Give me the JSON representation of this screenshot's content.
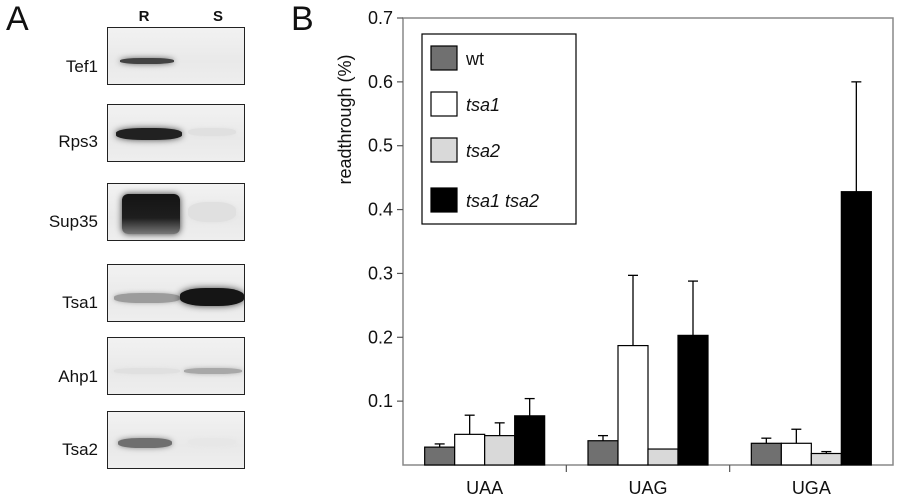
{
  "panel_a": {
    "letter": "A",
    "lanes": [
      "R",
      "S"
    ],
    "blots": [
      {
        "label": "Tef1",
        "r_intensity": 0.75,
        "s_intensity": 0.0
      },
      {
        "label": "Rps3",
        "r_intensity": 0.9,
        "s_intensity": 0.05
      },
      {
        "label": "Sup35",
        "r_intensity": 1.0,
        "s_intensity": 0.05
      },
      {
        "label": "Tsa1",
        "r_intensity": 0.35,
        "s_intensity": 0.95
      },
      {
        "label": "Ahp1",
        "r_intensity": 0.05,
        "s_intensity": 0.3
      },
      {
        "label": "Tsa2",
        "r_intensity": 0.55,
        "s_intensity": 0.02
      }
    ]
  },
  "panel_b": {
    "letter": "B"
  },
  "chart_data": {
    "type": "bar",
    "ylabel": "readthrough (%)",
    "xlabel": "",
    "ylim": [
      0,
      0.7
    ],
    "yticks": [
      "0.1",
      "0.2",
      "0.3",
      "0.4",
      "0.5",
      "0.6",
      "0.7"
    ],
    "categories": [
      "UAA",
      "UAG",
      "UGA"
    ],
    "legend_position": "top-left",
    "series": [
      {
        "name": "wt",
        "italic": false,
        "color": "#707070",
        "values": [
          0.028,
          0.038,
          0.034
        ],
        "errors": [
          0.005,
          0.008,
          0.008
        ]
      },
      {
        "name": "tsa1",
        "italic": true,
        "color": "#ffffff",
        "values": [
          0.048,
          0.187,
          0.034
        ],
        "errors": [
          0.03,
          0.11,
          0.022
        ]
      },
      {
        "name": "tsa2",
        "italic": true,
        "color": "#d9d9d9",
        "values": [
          0.046,
          0.025,
          0.018
        ],
        "errors": [
          0.02,
          0.0,
          0.003
        ]
      },
      {
        "name": "tsa1 tsa2",
        "italic": true,
        "color": "#000000",
        "values": [
          0.077,
          0.203,
          0.428
        ],
        "errors": [
          0.027,
          0.085,
          0.172
        ]
      }
    ]
  }
}
